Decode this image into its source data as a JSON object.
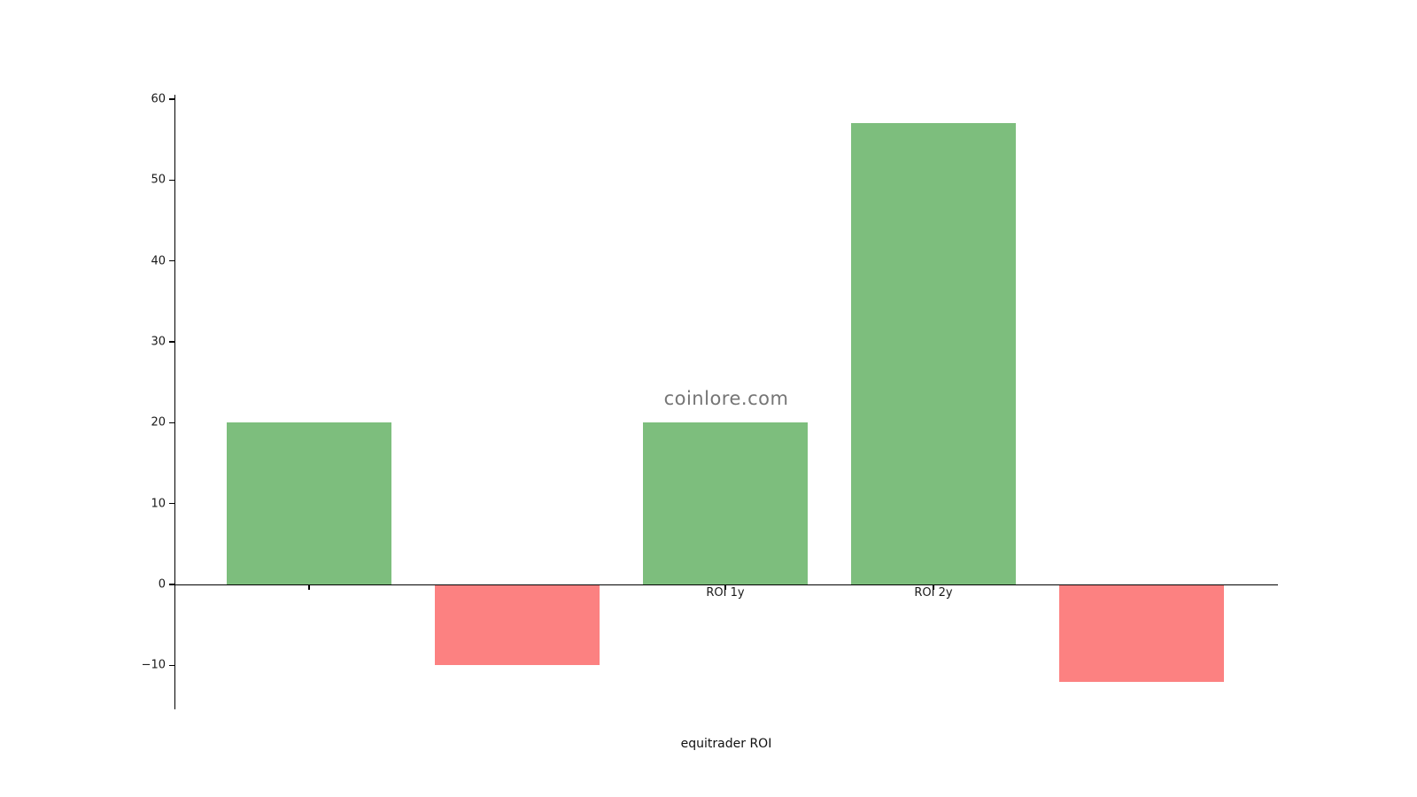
{
  "figure": {
    "background": "#ffffff"
  },
  "chart_data": {
    "type": "bar",
    "categories": [
      "",
      "",
      "ROI 1y",
      "ROI 2y",
      ""
    ],
    "values": [
      20,
      -10,
      20,
      57,
      -12
    ],
    "series": [
      {
        "name": "equitrader ROI",
        "values": [
          20,
          -10,
          20,
          57,
          -12
        ]
      }
    ],
    "bar_colors": [
      "#7DBE7D",
      "#FC8181",
      "#7DBE7D",
      "#7DBE7D",
      "#FC8181"
    ],
    "positive_color": "#7DBE7D",
    "negative_color": "#FC8181",
    "title": "",
    "xlabel": "equitrader ROI",
    "ylabel": "",
    "y_ticks": [
      60,
      50,
      40,
      30,
      20,
      10,
      0,
      -10
    ],
    "ylim": [
      -15.45,
      60.45
    ],
    "grid": false,
    "legend_position": "none",
    "axis_color": "#000000",
    "tick_label_color": "#1a1a1a",
    "watermark": "coinlore.com",
    "watermark_color": "#757575"
  }
}
